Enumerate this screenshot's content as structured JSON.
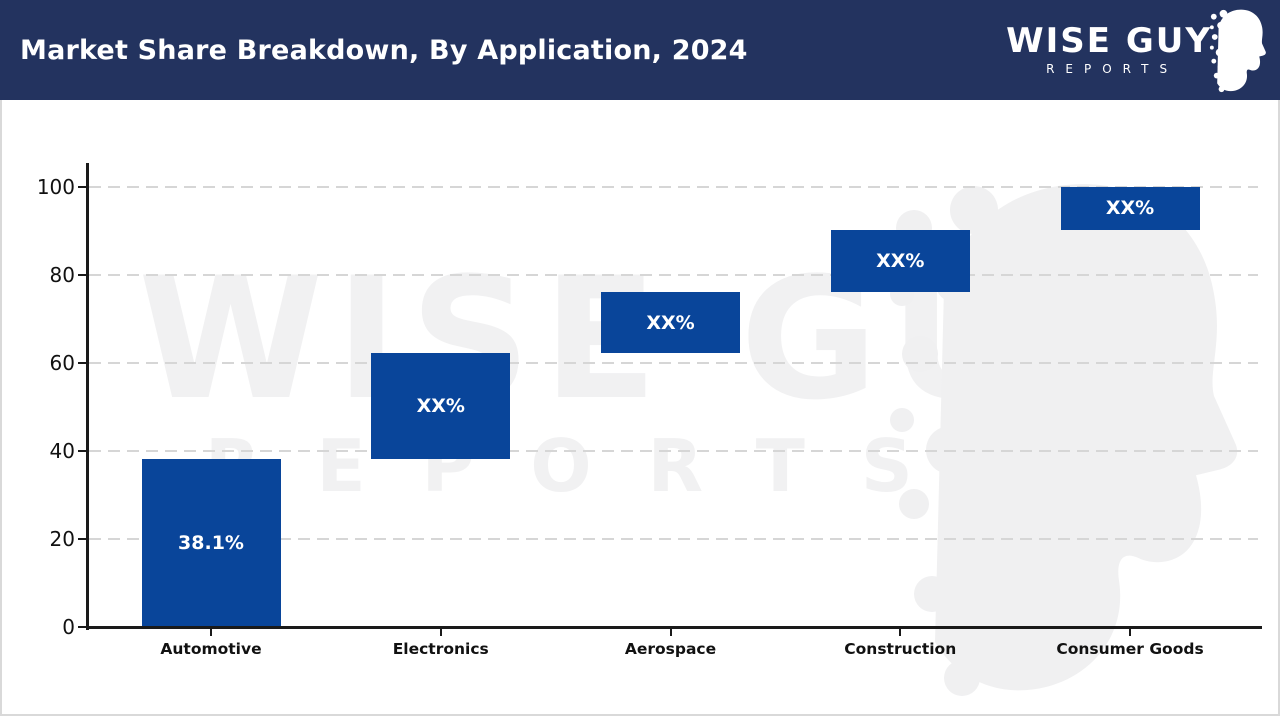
{
  "header": {
    "title": "Market Share Breakdown, By Application, 2024",
    "bg_color": "#23335f",
    "brand": {
      "line1": "WISE GUY",
      "line2": "REPORTS"
    }
  },
  "watermark": {
    "line1": "WISE GUY",
    "line2": "REPORTS"
  },
  "chart_data": {
    "type": "bar",
    "subtype": "waterfall",
    "title": "Market Share Breakdown, By Application, 2024",
    "categories": [
      "Automotive",
      "Electronics",
      "Aerospace",
      "Construction",
      "Consumer Goods"
    ],
    "segments": [
      {
        "category": "Automotive",
        "start": 0,
        "end": 38.1,
        "label": "38.1%"
      },
      {
        "category": "Electronics",
        "start": 38.1,
        "end": 62.2,
        "label": "XX%"
      },
      {
        "category": "Aerospace",
        "start": 62.2,
        "end": 76.1,
        "label": "XX%"
      },
      {
        "category": "Construction",
        "start": 76.1,
        "end": 90.3,
        "label": "XX%"
      },
      {
        "category": "Consumer Goods",
        "start": 90.3,
        "end": 100,
        "label": "XX%"
      }
    ],
    "implied_increments": [
      38.1,
      24.1,
      13.9,
      14.2,
      9.7
    ],
    "xlabel": "",
    "ylabel": "",
    "yticks": [
      0,
      20,
      40,
      60,
      80,
      100
    ],
    "ylim": [
      0,
      105
    ],
    "grid": "horizontal-dashed",
    "legend": "none",
    "bar_color": "#09459a",
    "axis_color": "#1a1a1a",
    "grid_color": "#d6d6d6",
    "label_color": "#ffffff"
  }
}
